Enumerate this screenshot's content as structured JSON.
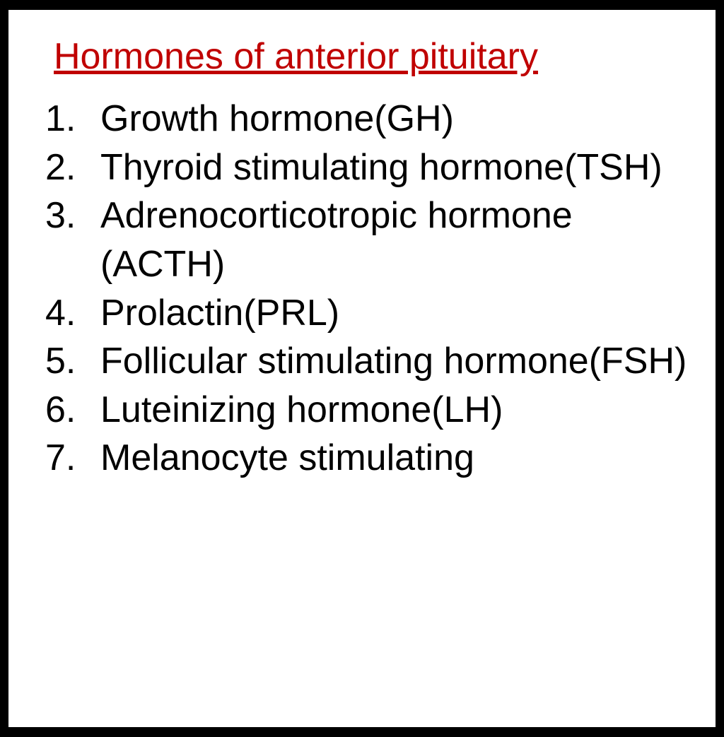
{
  "title": {
    "text": "Hormones of anterior pituitary",
    "color": "#c00000",
    "fontsize": 52,
    "underline": true
  },
  "list": {
    "text_color": "#000000",
    "fontsize": 52,
    "items": [
      {
        "text": "Growth hormone(GH)"
      },
      {
        "text": "Thyroid stimulating hormone(TSH)"
      },
      {
        "text": "Adrenocorticotropic hormone (ACTH)"
      },
      {
        "text": "Prolactin(PRL)"
      },
      {
        "text": "Follicular stimulating hormone(FSH)"
      },
      {
        "text": "Luteinizing hormone(LH)"
      },
      {
        "text": "Melanocyte stimulating"
      }
    ]
  },
  "background_color": "#ffffff",
  "outer_background": "#000000"
}
